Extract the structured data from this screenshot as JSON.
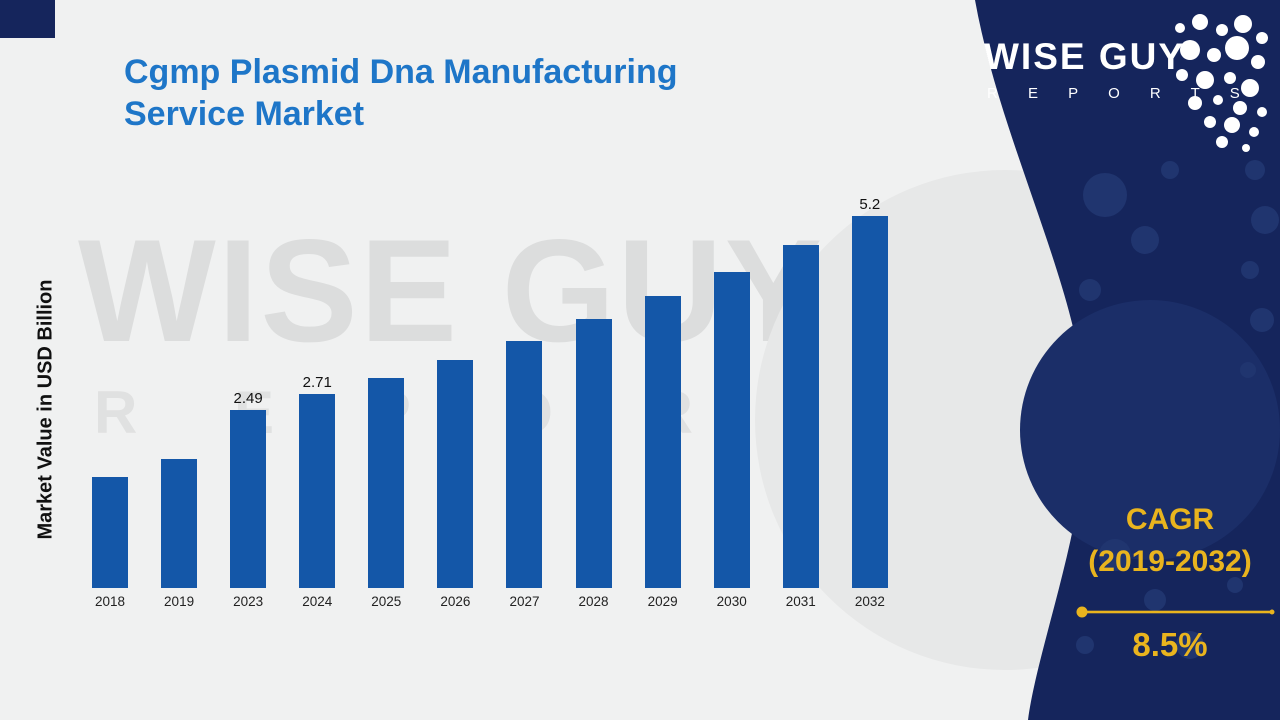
{
  "title": "Cgmp Plasmid Dna Manufacturing\nService Market",
  "ylabel": "Market Value in USD Billion",
  "watermark": {
    "line1": "WISE GUY",
    "line2": "R E P O R T S"
  },
  "logo": {
    "line1": "WISE GUY",
    "line2": "R E P O R T S"
  },
  "cagr": {
    "label": "CAGR",
    "range": "(2019-2032)",
    "value": "8.5%"
  },
  "colors": {
    "background": "#f0f1f1",
    "bar": "#1457a8",
    "title": "#1e76c8",
    "panel": "#15255c",
    "accent": "#e9b41e"
  },
  "chart_data": {
    "type": "bar",
    "title": "Cgmp Plasmid Dna Manufacturing Service Market",
    "xlabel": "",
    "ylabel": "Market Value in USD Billion",
    "categories": [
      "2018",
      "2019",
      "2023",
      "2024",
      "2025",
      "2026",
      "2027",
      "2028",
      "2029",
      "2030",
      "2031",
      "2032"
    ],
    "values": [
      1.55,
      1.8,
      2.49,
      2.71,
      2.94,
      3.19,
      3.46,
      3.76,
      4.08,
      4.42,
      4.8,
      5.2
    ],
    "data_labels": {
      "2023": "2.49",
      "2024": "2.71",
      "2032": "5.2"
    },
    "ylim": [
      0,
      5.5
    ],
    "grid": false,
    "legend": "none"
  }
}
